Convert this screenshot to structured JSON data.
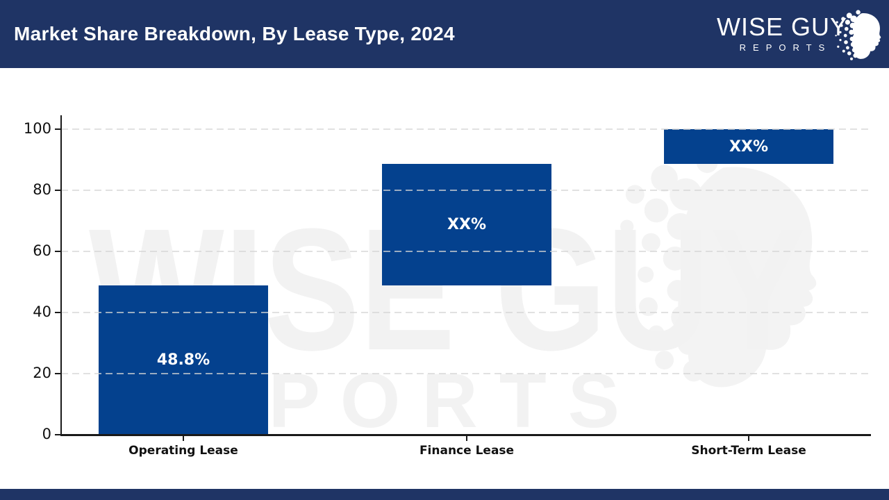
{
  "header": {
    "title": "Market Share Breakdown, By Lease Type, 2024",
    "logo_line1": "WISE GUY",
    "logo_line2": "REPORTS"
  },
  "watermark": {
    "line1": "WISE GUY",
    "line2": "R E P O R T S"
  },
  "chart_data": {
    "type": "bar",
    "subtype": "floating-segment-waterfall",
    "title": "Market Share Breakdown, By Lease Type, 2024",
    "categories": [
      "Operating Lease",
      "Finance Lease",
      "Short-Term Lease"
    ],
    "segments": [
      {
        "category": "Operating Lease",
        "start": 0,
        "end": 48.8,
        "label": "48.8%"
      },
      {
        "category": "Finance Lease",
        "start": 48.8,
        "end": 88.6,
        "label": "XX%"
      },
      {
        "category": "Short-Term Lease",
        "start": 88.6,
        "end": 100,
        "label": "XX%"
      }
    ],
    "yticks": [
      0,
      20,
      40,
      60,
      80,
      100
    ],
    "ylim": [
      0,
      104
    ],
    "xlabel": "",
    "ylabel": "",
    "grid": "horizontal-dashed",
    "legend": "none",
    "bar_color": "#04418e",
    "bar_label_color": "#ffffff"
  },
  "colors": {
    "header_bg": "#1f3465",
    "footer_bg": "#1f3465",
    "bar": "#04418e",
    "grid": "#d5d5d5",
    "axis": "#1a1a1a",
    "watermark": "#f2f2f2",
    "background": "#ffffff",
    "title_text": "#ffffff"
  }
}
